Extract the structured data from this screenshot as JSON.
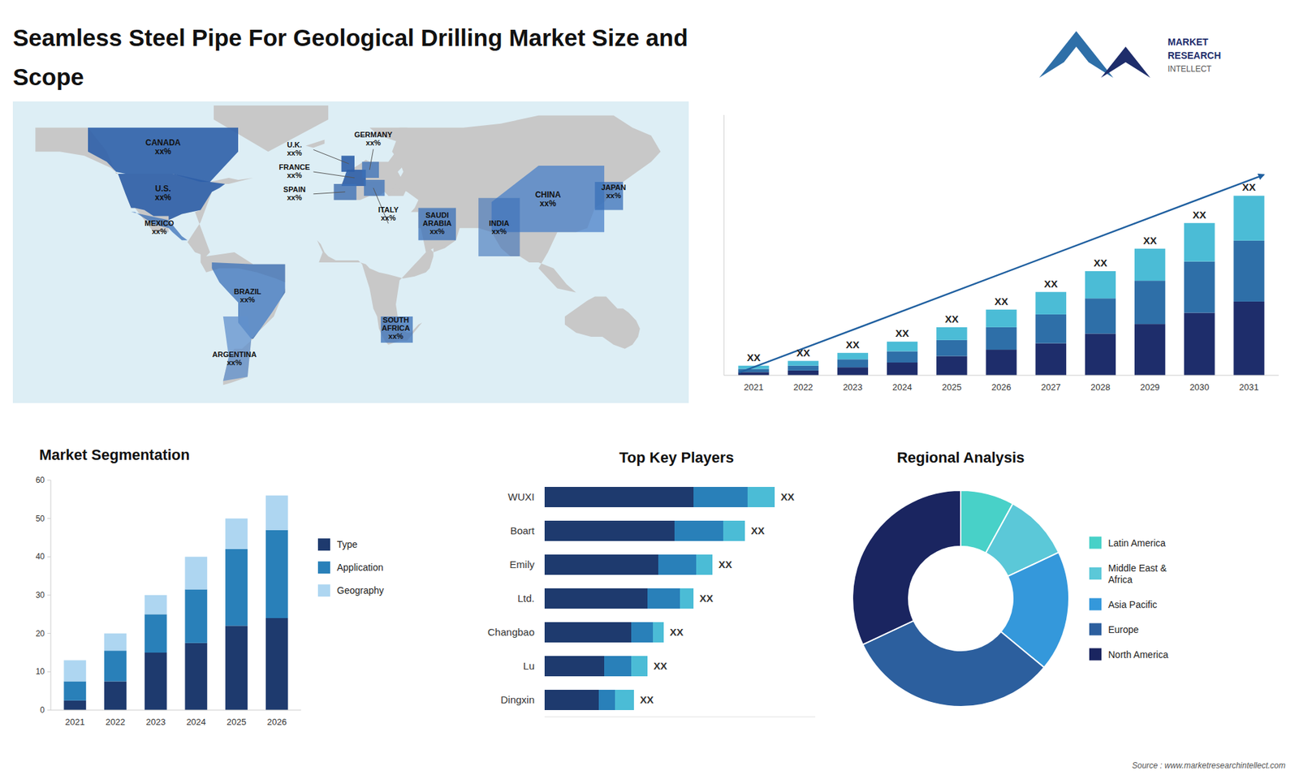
{
  "chart_data": [
    {
      "type": "map",
      "categories": [
        "CANADA\nxx%",
        "U.S.\nxx%",
        "MEXICO\nxx%",
        "BRAZIL\nxx%",
        "ARGENTINA\nxx%",
        "U.K.\nxx%",
        "FRANCE\nxx%",
        "SPAIN\nxx%",
        "GERMANY\nxx%",
        "ITALY\nxx%",
        "SAUDI\nARABIA\nxx%",
        "SOUTH\nAFRICA\nxx%",
        "CHINA\nxx%",
        "INDIA\nxx%",
        "JAPAN\nxx%"
      ]
    },
    {
      "type": "bar",
      "title": "Seamless Steel Pipe For Geological Drilling Market Size and\nScope",
      "annotations": [
        "MARKET",
        "RESEARCH",
        "INTELLECT",
        "Source : www.marketresearchintellect.com"
      ],
      "categories": [
        "2021",
        "2022",
        "2023",
        "2024",
        "2025",
        "2026",
        "2027",
        "2028",
        "2029",
        "2030",
        "2031"
      ],
      "series": [
        {
          "color": "#1e2d6b",
          "values": [
            2,
            3,
            5,
            8,
            12,
            16,
            20,
            26,
            32,
            39,
            46
          ]
        },
        {
          "color": "#2e6fa8",
          "values": [
            2,
            3,
            5,
            7,
            10,
            14,
            18,
            22,
            27,
            32,
            38
          ]
        },
        {
          "color": "#4bbcd6",
          "values": [
            2,
            3,
            4,
            6,
            8,
            11,
            14,
            17,
            20,
            24,
            28
          ],
          "value_labels": [
            "XX",
            "XX",
            "XX",
            "XX",
            "XX",
            "XX",
            "XX",
            "XX",
            "XX",
            "XX",
            "XX"
          ]
        }
      ],
      "stacked": true,
      "ylim": [
        0,
        162.4
      ],
      "tick_labels": "x"
    },
    {
      "type": "bar",
      "title": "Market Segmentation",
      "categories": [
        "2021",
        "2022",
        "2023",
        "2024",
        "2025",
        "2026"
      ],
      "series": [
        {
          "name": "Type",
          "color": "#1e3a6e",
          "values": [
            2.5,
            7.5,
            15,
            17.5,
            22,
            24
          ]
        },
        {
          "name": "Application",
          "color": "#2980b9",
          "values": [
            5,
            8,
            10,
            14,
            20,
            23
          ]
        },
        {
          "name": "Geography",
          "color": "#aed6f1",
          "values": [
            5.5,
            4.5,
            5,
            8.5,
            8,
            9
          ]
        }
      ],
      "stacked": true,
      "ylim": [
        0,
        60
      ],
      "yticks": [
        0,
        10,
        20,
        30,
        40,
        50,
        60
      ],
      "legend": "right"
    },
    {
      "type": "bar",
      "orientation": "horizontal",
      "title": "Top Key Players",
      "categories": [
        "WUXI",
        "Boart",
        "Emily",
        "Ltd.",
        "Changbao",
        "Lu",
        "Dingxin"
      ],
      "series": [
        {
          "color": "#1e3a6e",
          "values": [
            0.55,
            0.48,
            0.42,
            0.38,
            0.32,
            0.22,
            0.2
          ]
        },
        {
          "color": "#2980b9",
          "values": [
            0.2,
            0.18,
            0.14,
            0.12,
            0.08,
            0.1,
            0.06
          ]
        },
        {
          "color": "#4bbcd6",
          "values": [
            0.1,
            0.08,
            0.06,
            0.05,
            0.04,
            0.06,
            0.07
          ],
          "value_labels": [
            "XX",
            "XX",
            "XX",
            "XX",
            "XX",
            "XX",
            "XX"
          ]
        }
      ],
      "stacked": true,
      "xlim": [
        0,
        1
      ],
      "tick_labels": "y"
    },
    {
      "type": "pie",
      "title": "Regional Analysis",
      "categories": [
        "Latin America",
        "Middle East &\nAfrica",
        "Asia Pacific",
        "Europe",
        "North America"
      ],
      "values": [
        8,
        10,
        18,
        32,
        32
      ],
      "colors": [
        "#48d1c8",
        "#5bc8d8",
        "#3498db",
        "#2c5f9e",
        "#1a2560"
      ],
      "legend": "right"
    }
  ]
}
